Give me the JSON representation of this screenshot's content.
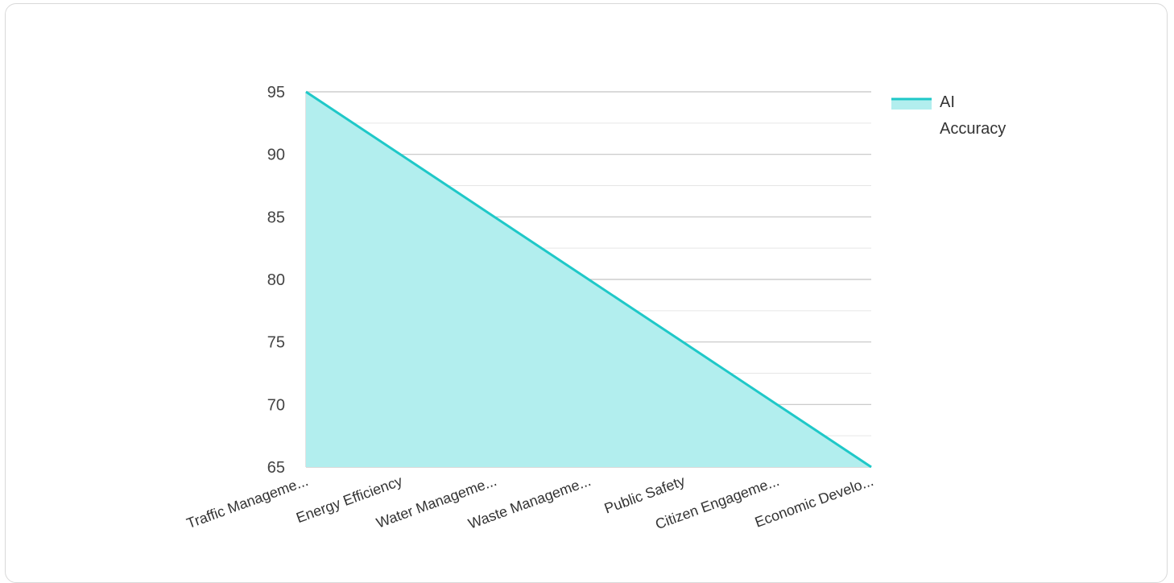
{
  "chart_data": {
    "type": "area",
    "categories": [
      "Traffic Manageme...",
      "Energy Efficiency",
      "Water Manageme...",
      "Waste Manageme...",
      "Public Safety",
      "Citizen Engageme...",
      "Economic Develo..."
    ],
    "series": [
      {
        "name": "AI Accuracy",
        "values": [
          95,
          90,
          85,
          80,
          75,
          70,
          65
        ]
      }
    ],
    "ylim": [
      65,
      95
    ],
    "yticks": [
      95,
      90,
      85,
      80,
      75,
      70,
      65
    ],
    "grid": true,
    "legend": "right",
    "legend_lines": [
      "AI",
      "Accuracy"
    ],
    "colors": {
      "line": "#1fc8c8",
      "fill": "#b2eeee",
      "grid_major": "#c4c4c4",
      "grid_minor": "#e6e6e6"
    }
  }
}
